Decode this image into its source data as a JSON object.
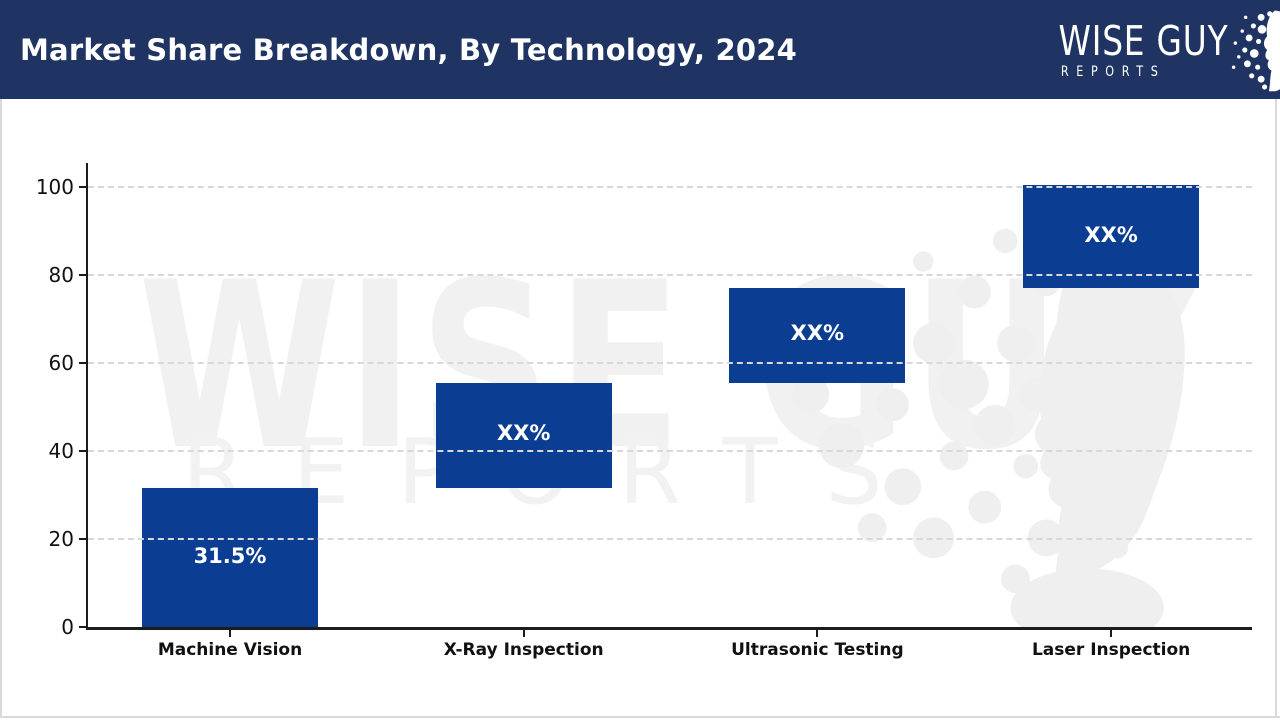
{
  "header": {
    "title": "Market Share Breakdown, By Technology, 2024",
    "background_color": "#1f3463",
    "logo": {
      "line1": "WISE GUY",
      "line2": "REPORTS"
    }
  },
  "watermark": {
    "line1": "WISE GUY",
    "line2": "REPORTS"
  },
  "chart_data": {
    "type": "bar",
    "subtype": "waterfall",
    "title": "Market Share Breakdown, By Technology, 2024",
    "xlabel": "",
    "ylabel": "",
    "categories": [
      "Machine Vision",
      "X-Ray Inspection",
      "Ultrasonic Testing",
      "Laser Inspection"
    ],
    "segments": [
      {
        "category": "Machine Vision",
        "start": 0,
        "end": 31.5,
        "label": "31.5%"
      },
      {
        "category": "X-Ray Inspection",
        "start": 31.5,
        "end": 55.5,
        "label": "XX%"
      },
      {
        "category": "Ultrasonic Testing",
        "start": 55.5,
        "end": 77,
        "label": "XX%"
      },
      {
        "category": "Laser Inspection",
        "start": 77,
        "end": 100.3,
        "label": "XX%"
      }
    ],
    "yticks": [
      0,
      20,
      40,
      60,
      80,
      100
    ],
    "ylim": [
      0,
      105
    ],
    "grid": "horizontal dashed, drawn above bars",
    "legend": "none",
    "bar_color": "#0b3e92",
    "bar_label_color": "#ffffff",
    "axis_color": "#1c1c1c",
    "grid_color": "#d8d8d8"
  }
}
